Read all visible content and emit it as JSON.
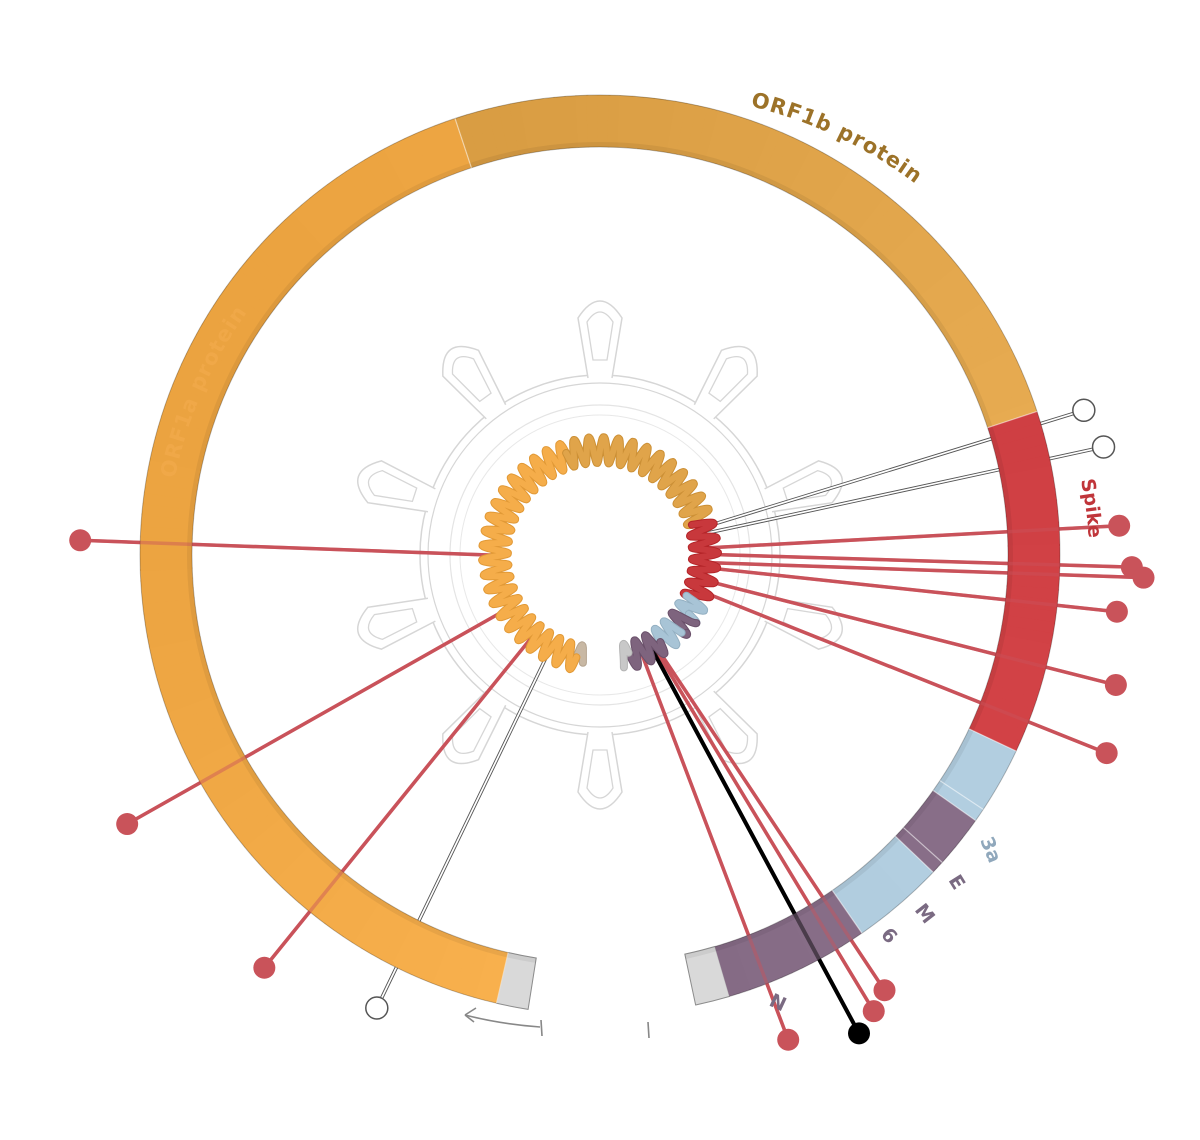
{
  "genes": [
    {
      "id": "orf1a",
      "label": "ORF1a protein",
      "color": "#F5AD4A",
      "label_color": "#F0A848",
      "start": 0,
      "end": 0.445
    },
    {
      "id": "orf1b",
      "label": "ORF1b protein",
      "color": "#E0A44A",
      "label_color": "#9C7228",
      "start": 0.445,
      "end": 0.715
    },
    {
      "id": "spike",
      "label": "Spike",
      "color": "#C8383C",
      "label_color": "#C0353A",
      "start": 0.715,
      "end": 0.845
    },
    {
      "id": "orf3a",
      "label": "3a",
      "color": "#A8C4D6",
      "label_color": "#90A8BC",
      "start": 0.845,
      "end": 0.87
    },
    {
      "id": "e",
      "label": "E",
      "color": "#A8C4D6",
      "label_color": "#7A6A82",
      "start": 0.87,
      "end": 0.875
    },
    {
      "id": "m",
      "label": "M",
      "color": "#7E647E",
      "label_color": "#7A6A82",
      "start": 0.875,
      "end": 0.895
    },
    {
      "id": "orf6",
      "label": "6",
      "color": "#7E647E",
      "label_color": "#7A6A82",
      "start": 0.895,
      "end": 0.9
    },
    {
      "id": "orf7_8",
      "label": "",
      "color": "#A8C4D6",
      "label_color": "#90A8BC",
      "start": 0.9,
      "end": 0.935
    },
    {
      "id": "n",
      "label": "N",
      "color": "#7E647E",
      "label_color": "#7A6A82",
      "start": 0.935,
      "end": 0.99
    }
  ],
  "mutations": [
    {
      "pos": 0.045,
      "type": "synonymous"
    },
    {
      "pos": 0.08,
      "type": "missense"
    },
    {
      "pos": 0.14,
      "type": "missense"
    },
    {
      "pos": 0.23,
      "type": "missense"
    },
    {
      "pos": 0.725,
      "type": "synonymous"
    },
    {
      "pos": 0.735,
      "type": "synonymous"
    },
    {
      "pos": 0.758,
      "type": "missense"
    },
    {
      "pos": 0.768,
      "type": "missense"
    },
    {
      "pos": 0.782,
      "type": "missense"
    },
    {
      "pos": 0.79,
      "type": "missense"
    },
    {
      "pos": 0.81,
      "type": "missense"
    },
    {
      "pos": 0.828,
      "type": "missense"
    },
    {
      "pos": 0.945,
      "type": "missense"
    },
    {
      "pos": 0.948,
      "type": "missense"
    },
    {
      "pos": 0.952,
      "type": "highlight"
    },
    {
      "pos": 0.97,
      "type": "missense"
    }
  ],
  "colors": {
    "missense": "#C9535A",
    "synonymous": "#7A7A7A",
    "highlight": "#000000",
    "utr": "#D9D9D9",
    "virus_outline": "#D6D6D6"
  },
  "direction_arrow": "arrow-left-icon"
}
